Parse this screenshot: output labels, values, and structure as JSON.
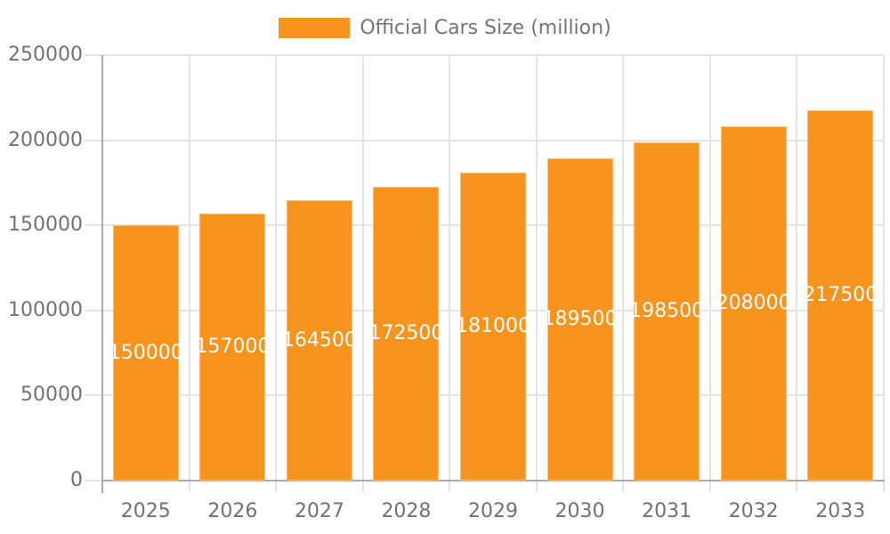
{
  "legend": {
    "label": "Official Cars Size (million)"
  },
  "chart_data": {
    "type": "bar",
    "title": "",
    "series_name": "Official Cars Size (million)",
    "categories": [
      "2025",
      "2026",
      "2027",
      "2028",
      "2029",
      "2030",
      "2031",
      "2032",
      "2033"
    ],
    "values": [
      150000,
      157000,
      164500,
      172500,
      181000,
      189500,
      198500,
      208000,
      217500
    ],
    "data_labels": [
      "150000",
      "157000",
      "164500",
      "172500",
      "181000",
      "189500",
      "198500",
      "208000",
      "217500"
    ],
    "xlabel": "",
    "ylabel": "",
    "ylim": [
      0,
      250000
    ],
    "yticks": [
      0,
      50000,
      100000,
      150000,
      200000,
      250000
    ],
    "grid": "on",
    "legend_position": "top"
  },
  "style": {
    "bar_color": "#F7941E",
    "data_label_color": "#FFFFFF",
    "axis_text_color": "#727272",
    "legend_text_color": "#757575",
    "gridline_color": "#E4E4E4",
    "axis_line_color": "#ABABAB"
  }
}
